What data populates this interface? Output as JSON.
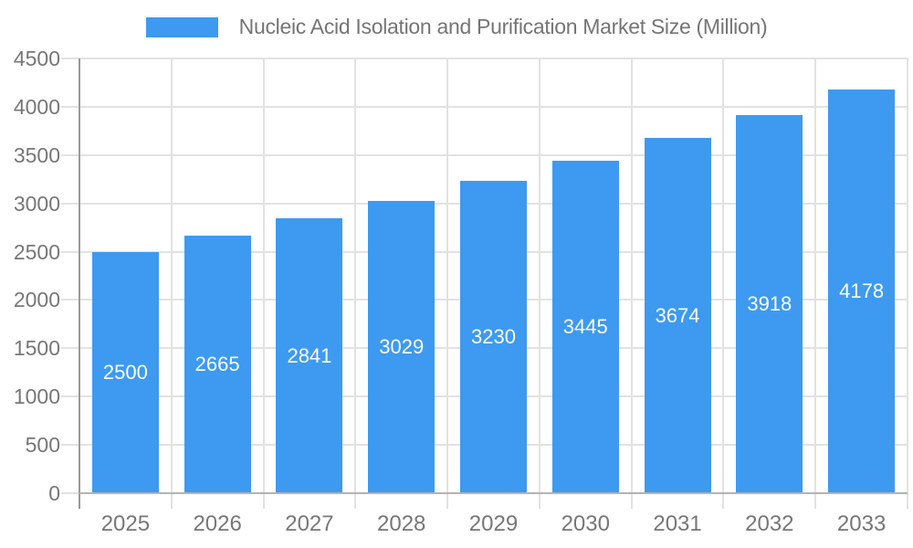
{
  "chart_data": {
    "type": "bar",
    "title": "Nucleic Acid Isolation and Purification Market Size (Million)",
    "categories": [
      "2025",
      "2026",
      "2027",
      "2028",
      "2029",
      "2030",
      "2031",
      "2032",
      "2033"
    ],
    "values": [
      2500,
      2665,
      2841,
      3029,
      3230,
      3445,
      3674,
      3918,
      4178
    ],
    "xlabel": "",
    "ylabel": "",
    "ylim": [
      0,
      4500
    ],
    "y_ticks": [
      0,
      500,
      1000,
      1500,
      2000,
      2500,
      3000,
      3500,
      4000,
      4500
    ],
    "grid": true,
    "legend_position": "top",
    "bar_value_labels": true
  },
  "legend": {
    "label": "Nucleic Acid Isolation and Purification Market Size (Million)"
  },
  "colors": {
    "bar": "#3D9AF0",
    "bar_label_text": "#ffffff",
    "axis_text": "#777777",
    "title_text": "#757575",
    "gridline": "#e2e2e2",
    "y_axis_line": "#999999",
    "x_axis_line": "#b3b3b3",
    "background": "#ffffff"
  }
}
